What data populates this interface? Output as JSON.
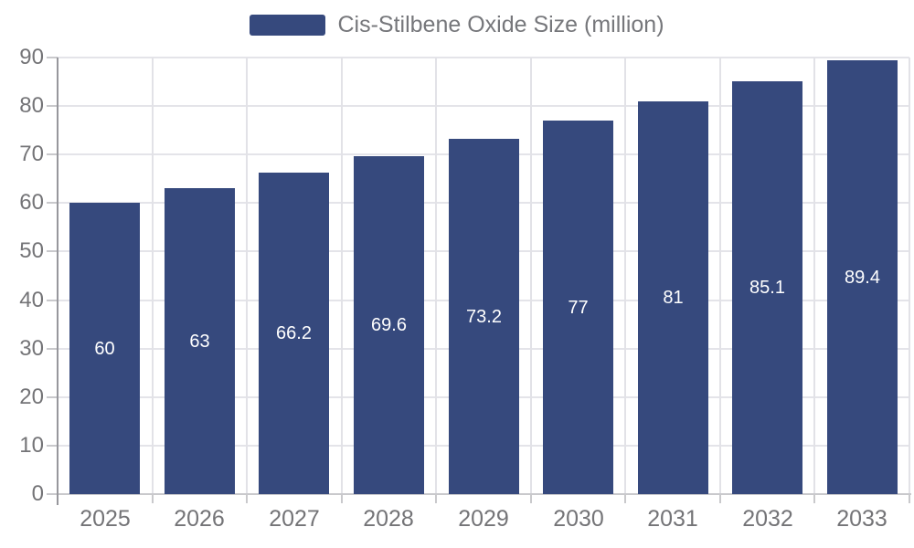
{
  "legend": {
    "label": "Cis-Stilbene Oxide Size (million)",
    "swatch_color": "#36497D"
  },
  "chart_data": {
    "type": "bar",
    "title": "Cis-Stilbene Oxide Size (million)",
    "categories": [
      "2025",
      "2026",
      "2027",
      "2028",
      "2029",
      "2030",
      "2031",
      "2032",
      "2033"
    ],
    "series": [
      {
        "name": "Cis-Stilbene Oxide Size (million)",
        "values": [
          60,
          63,
          66.2,
          69.6,
          73.2,
          77,
          81,
          85.1,
          89.4
        ],
        "labels": [
          "60",
          "63",
          "66.2",
          "69.6",
          "73.2",
          "77",
          "81",
          "85.1",
          "89.4"
        ],
        "color": "#36497D"
      }
    ],
    "ylim": [
      0,
      90
    ],
    "ytick_step": 10,
    "yticks": [
      "0",
      "10",
      "20",
      "30",
      "40",
      "50",
      "60",
      "70",
      "80",
      "90"
    ],
    "xlabel": "",
    "ylabel": "",
    "grid": true,
    "legend_position": "top-center",
    "value_label_color": "#ffffff",
    "value_label_position": "inside-center",
    "axis_text_color": "#747477",
    "grid_color": "#e4e4e9",
    "background_color": "#ffffff"
  }
}
